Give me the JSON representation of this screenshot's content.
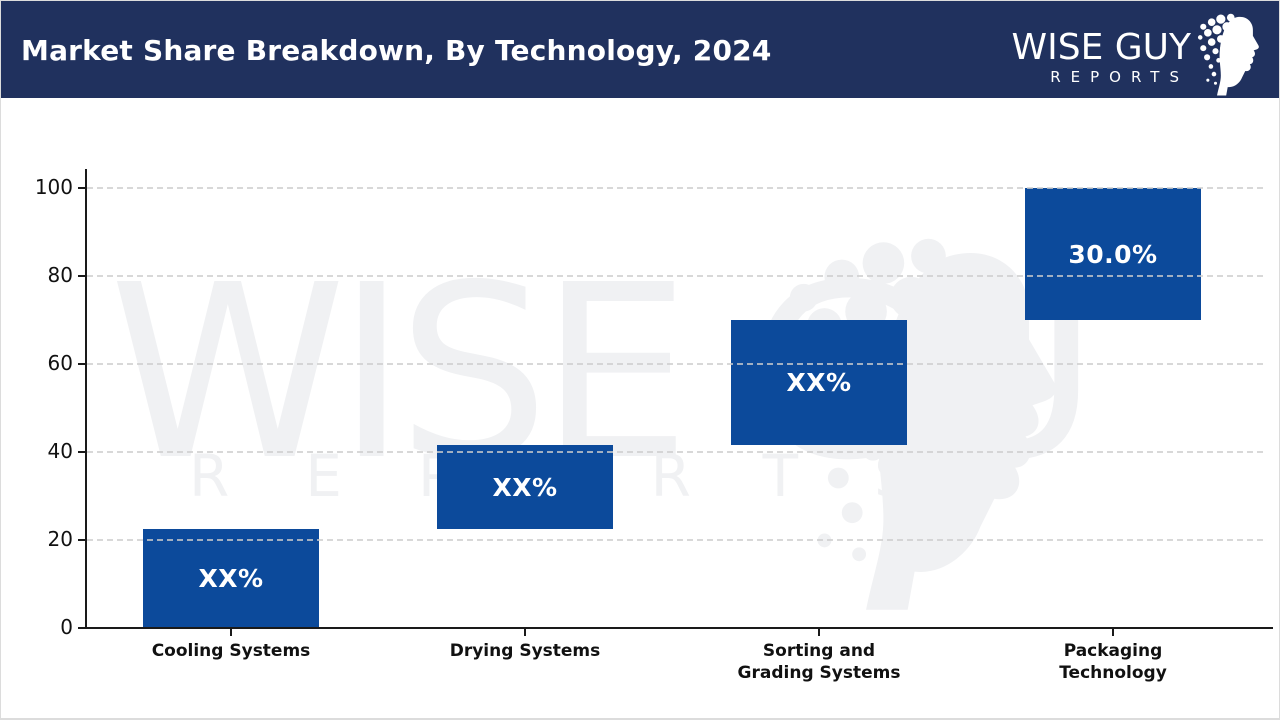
{
  "header": {
    "title": "Market Share Breakdown, By Technology, 2024",
    "logo": {
      "wordmark": "WISE GUY",
      "sub": "REPORTS"
    }
  },
  "watermark": {
    "wordmark": "WISE GU",
    "sub": "REPORTS"
  },
  "colors": {
    "header_navy": "#20315e",
    "bar_blue": "#0c4a9b",
    "axis_dark": "#1a1a1a",
    "watermark_gray": "#f0f1f3",
    "grid_gray": "#cdcdcd"
  },
  "chart_data": {
    "type": "bar",
    "variant": "floating-waterfall",
    "title": "Market Share Breakdown, By Technology, 2024",
    "categories": [
      "Cooling Systems",
      "Drying Systems",
      "Sorting and\nGrading Systems",
      "Packaging\nTechnology"
    ],
    "bars": [
      {
        "category": "Cooling Systems",
        "start": 0,
        "end": 22.5,
        "label": "XX%"
      },
      {
        "category": "Drying Systems",
        "start": 22.5,
        "end": 41.5,
        "label": "XX%"
      },
      {
        "category": "Sorting and Grading Systems",
        "start": 41.5,
        "end": 70,
        "label": "XX%"
      },
      {
        "category": "Packaging Technology",
        "start": 70,
        "end": 100,
        "label": "30.0%"
      }
    ],
    "ylim": [
      0,
      100
    ],
    "yticks": [
      0,
      20,
      40,
      60,
      80,
      100
    ],
    "xlabel": "",
    "ylabel": "",
    "grid": true,
    "gridstyle": "dashed",
    "legend": false,
    "bar_color": "#0c4a9b",
    "label_color": "#ffffff"
  }
}
